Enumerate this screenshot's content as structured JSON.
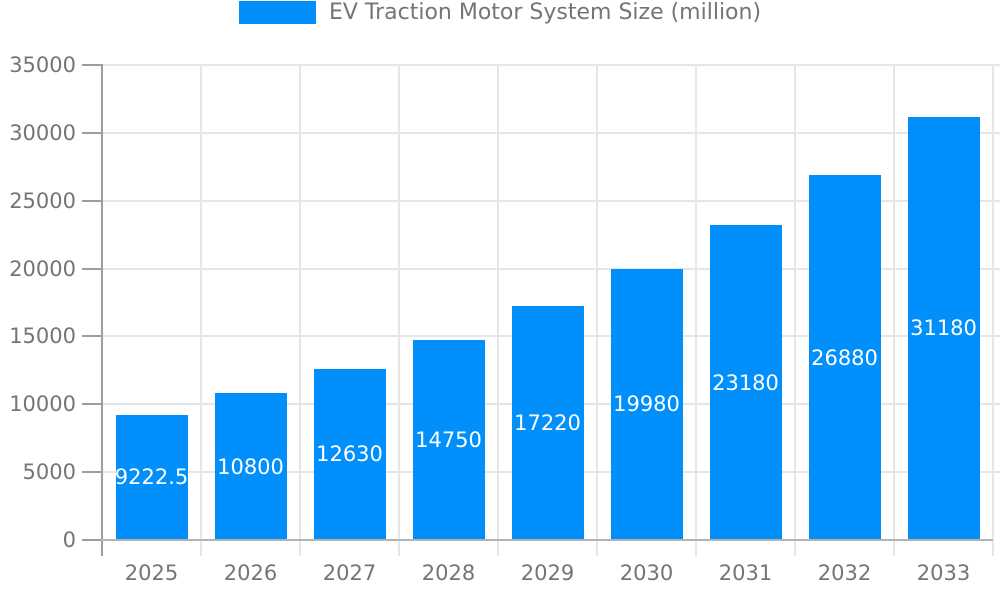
{
  "chart_data": {
    "type": "bar",
    "title": "EV Traction Motor System Size (million)",
    "categories": [
      "2025",
      "2026",
      "2027",
      "2028",
      "2029",
      "2030",
      "2031",
      "2032",
      "2033"
    ],
    "values": [
      9222.5,
      10800,
      12630,
      14750,
      17220,
      19980,
      23180,
      26880,
      31180
    ],
    "value_labels": [
      "9222.5",
      "10800",
      "12630",
      "14750",
      "17220",
      "19980",
      "23180",
      "26880",
      "31180"
    ],
    "series_name": "EV Traction Motor System Size (million)",
    "xlabel": "",
    "ylabel": "",
    "ylim": [
      0,
      35000
    ],
    "ytick_labels": [
      "0",
      "5000",
      "10000",
      "15000",
      "20000",
      "25000",
      "30000",
      "35000"
    ],
    "grid": "on",
    "legend_position": "top",
    "value_label_position": "inside-center",
    "colors": {
      "bar": "#008FFB",
      "axis_text": "#757575",
      "value_label_text": "#ffffff",
      "grid_line": "#e6e6e6",
      "y_axis_line": "#9e9e9e",
      "x_axis_line": "#b3b3b3",
      "background": "#ffffff"
    }
  }
}
